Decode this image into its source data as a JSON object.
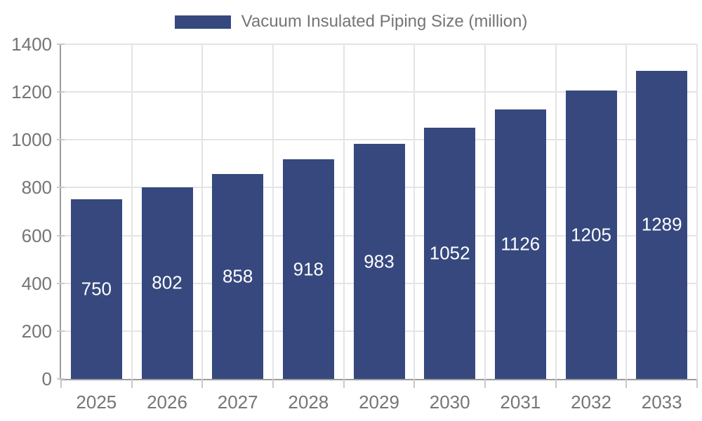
{
  "chart_data": {
    "type": "bar",
    "title": "Vacuum Insulated Piping Size (million)",
    "legend": {
      "position": "top",
      "entries": [
        "Vacuum Insulated Piping Size (million)"
      ]
    },
    "categories": [
      "2025",
      "2026",
      "2027",
      "2028",
      "2029",
      "2030",
      "2031",
      "2032",
      "2033"
    ],
    "values": [
      750,
      802,
      858,
      918,
      983,
      1052,
      1126,
      1205,
      1289
    ],
    "data_labels_visible": true,
    "xlabel": "",
    "ylabel": "",
    "ylim": [
      0,
      1400
    ],
    "yticks": [
      0,
      200,
      400,
      600,
      800,
      1000,
      1200,
      1400
    ],
    "grid": true,
    "colors": {
      "bar_fill": "#36487E",
      "bar_value_label": "#ffffff",
      "axis_text": "#757575",
      "gridline": "#e4e4e6",
      "axis_line": "#9b9b9b",
      "tick_mark": "#c9c9c9"
    }
  }
}
